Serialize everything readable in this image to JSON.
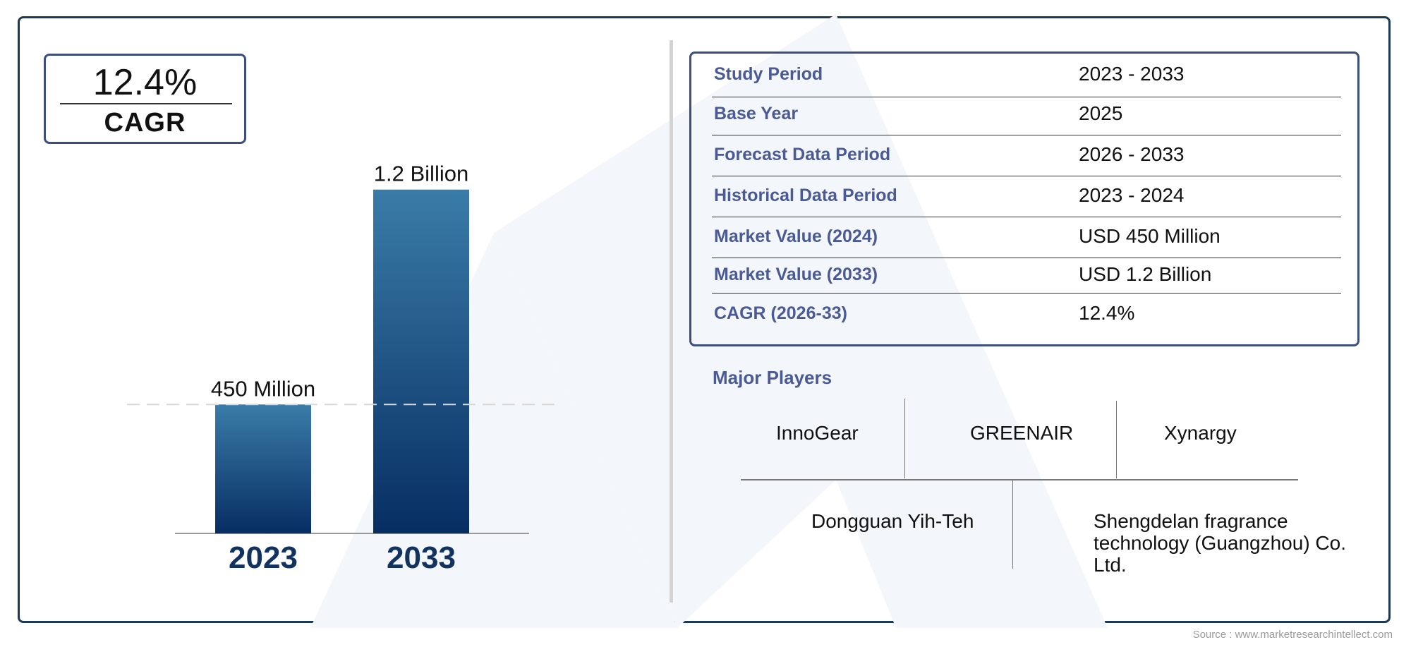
{
  "cagr": {
    "value": "12.4%",
    "label": "CAGR"
  },
  "chart_data": {
    "type": "bar",
    "categories": [
      "2023",
      "2033"
    ],
    "values": [
      450,
      1200
    ],
    "units": "Million",
    "data_labels": [
      "450 Million",
      "1.2 Billion"
    ],
    "ylim": [
      0,
      1320
    ],
    "grid": false,
    "reference_line": "dashed line at 2023 value",
    "colors": {
      "bar_top": "#3a7ca8",
      "bar_bottom": "#072e63",
      "tick_label": "#12335f"
    }
  },
  "study_info": {
    "rows": [
      {
        "label": "Study Period",
        "value": "2023 - 2033"
      },
      {
        "label": "Base Year",
        "value": "2025"
      },
      {
        "label": "Forecast Data Period",
        "value": "2026 - 2033"
      },
      {
        "label": "Historical Data Period",
        "value": "2023 - 2024"
      },
      {
        "label": "Market Value (2024)",
        "value": "USD 450 Million"
      },
      {
        "label": "Market Value (2033)",
        "value": "USD 1.2 Billion"
      },
      {
        "label": "CAGR (2026-33)",
        "value": "12.4%"
      }
    ]
  },
  "major_players": {
    "title": "Major Players",
    "row1": [
      "InnoGear",
      "GREENAIR",
      "Xynargy"
    ],
    "row2": [
      "Dongguan Yih-Teh",
      "Shengdelan fragrance technology (Guangzhou) Co. Ltd."
    ]
  },
  "source": "Source : www.marketresearchintellect.com",
  "colors": {
    "accent": "#4a5a95",
    "frame": "#1d3a55",
    "box_border": "#3c4d80"
  }
}
